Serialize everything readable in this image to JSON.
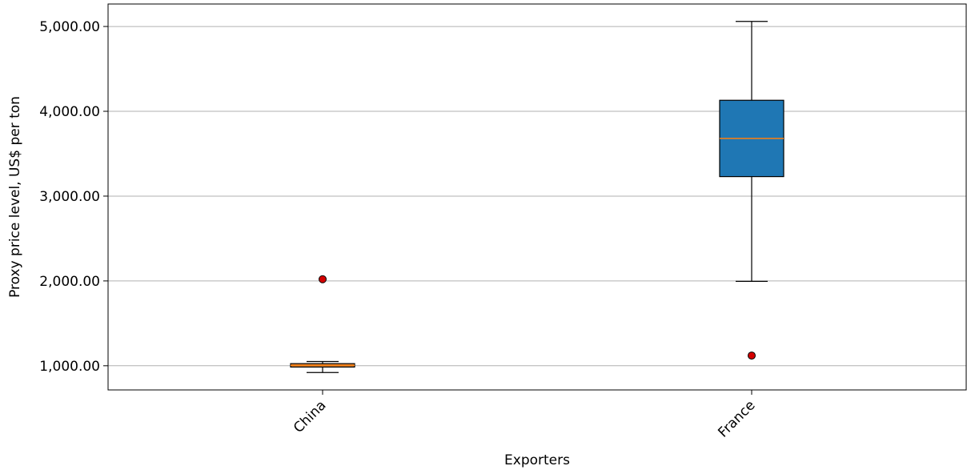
{
  "chart_data": {
    "type": "box",
    "title": "",
    "xlabel": "Exporters",
    "ylabel": "Proxy price level, US$ per ton",
    "categories": [
      "China",
      "France"
    ],
    "ylim": [
      715,
      5265
    ],
    "yticks": [
      1000,
      2000,
      3000,
      4000,
      5000
    ],
    "ytick_labels": [
      "1,000.00",
      "2,000.00",
      "3,000.00",
      "4,000.00",
      "5,000.00"
    ],
    "grid": "horizontal",
    "boxes": [
      {
        "category": "China",
        "whisker_low": 920,
        "q1": 985,
        "median": 1005,
        "q3": 1025,
        "whisker_high": 1050,
        "outliers": [
          2020
        ],
        "fill": "#d8863b"
      },
      {
        "category": "France",
        "whisker_low": 1995,
        "q1": 3230,
        "median": 3680,
        "q3": 4130,
        "whisker_high": 5060,
        "outliers": [
          1120
        ],
        "fill": "#1f77b4"
      }
    ],
    "colors": {
      "median": "#ff7f0e",
      "outlier": "#d40000",
      "grid": "#b0b0b0"
    }
  }
}
